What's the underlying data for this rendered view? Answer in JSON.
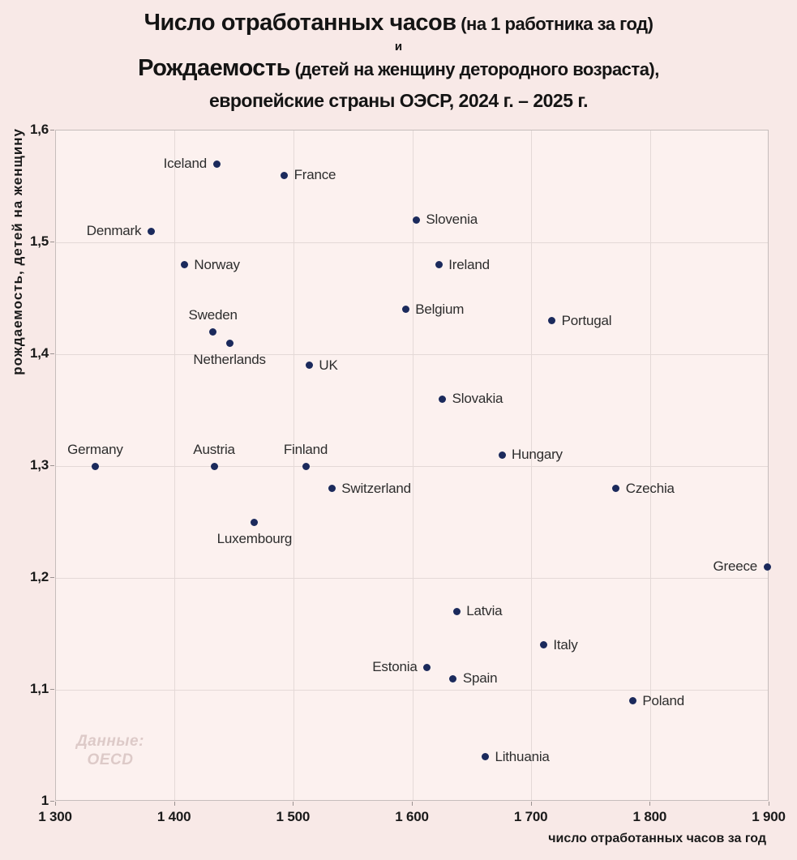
{
  "title": {
    "line1_main": "Число отработанных часов",
    "line1_sub": " (на 1 работника за год)",
    "line2": "и",
    "line3_main": "Рождаемость",
    "line3_sub": " (детей на женщину детородного возраста),",
    "line4": "европейские страны ОЭСР, 2024 г. – 2025 г."
  },
  "watermark": {
    "line1": "Данные:",
    "line2": "OECD"
  },
  "colors": {
    "background": "#f8e9e7",
    "plot_background": "#fcf1ef",
    "grid": "#e4d9d7",
    "point": "#1b2a5c",
    "label_text": "#2d2d2d"
  },
  "chart_data": {
    "type": "scatter",
    "title": "Число отработанных часов (на 1 работника за год) и Рождаемость (детей на женщину детородного возраста), европейские страны ОЭСР, 2024 г. – 2025 г.",
    "xlabel": "число отработанных часов за год",
    "ylabel": "рождаемость, детей на женщину",
    "xlim": [
      1300,
      1900
    ],
    "ylim": [
      1.0,
      1.6
    ],
    "grid": true,
    "xticks": {
      "values": [
        1300,
        1400,
        1500,
        1600,
        1700,
        1800,
        1900
      ],
      "labels": [
        "1 300",
        "1 400",
        "1 500",
        "1 600",
        "1 700",
        "1 800",
        "1 900"
      ]
    },
    "yticks": {
      "values": [
        1.0,
        1.1,
        1.2,
        1.3,
        1.4,
        1.5,
        1.6
      ],
      "labels": [
        "1",
        "1,1",
        "1,2",
        "1,3",
        "1,4",
        "1,5",
        "1,6"
      ]
    },
    "points": [
      {
        "country": "Iceland",
        "hours": 1435,
        "fertility": 1.57,
        "label_position": "left"
      },
      {
        "country": "France",
        "hours": 1492,
        "fertility": 1.56,
        "label_position": "right"
      },
      {
        "country": "Slovenia",
        "hours": 1603,
        "fertility": 1.52,
        "label_position": "right"
      },
      {
        "country": "Denmark",
        "hours": 1380,
        "fertility": 1.51,
        "label_position": "left"
      },
      {
        "country": "Norway",
        "hours": 1408,
        "fertility": 1.48,
        "label_position": "right"
      },
      {
        "country": "Ireland",
        "hours": 1622,
        "fertility": 1.48,
        "label_position": "right"
      },
      {
        "country": "Belgium",
        "hours": 1594,
        "fertility": 1.44,
        "label_position": "right"
      },
      {
        "country": "Portugal",
        "hours": 1717,
        "fertility": 1.43,
        "label_position": "right"
      },
      {
        "country": "Sweden",
        "hours": 1432,
        "fertility": 1.42,
        "label_position": "above"
      },
      {
        "country": "Netherlands",
        "hours": 1446,
        "fertility": 1.41,
        "label_position": "below"
      },
      {
        "country": "UK",
        "hours": 1513,
        "fertility": 1.39,
        "label_position": "right"
      },
      {
        "country": "Slovakia",
        "hours": 1625,
        "fertility": 1.36,
        "label_position": "right"
      },
      {
        "country": "Hungary",
        "hours": 1675,
        "fertility": 1.31,
        "label_position": "right"
      },
      {
        "country": "Germany",
        "hours": 1333,
        "fertility": 1.3,
        "label_position": "above"
      },
      {
        "country": "Austria",
        "hours": 1433,
        "fertility": 1.3,
        "label_position": "above"
      },
      {
        "country": "Finland",
        "hours": 1510,
        "fertility": 1.3,
        "label_position": "above"
      },
      {
        "country": "Switzerland",
        "hours": 1532,
        "fertility": 1.28,
        "label_position": "right"
      },
      {
        "country": "Czechia",
        "hours": 1771,
        "fertility": 1.28,
        "label_position": "right"
      },
      {
        "country": "Luxembourg",
        "hours": 1467,
        "fertility": 1.25,
        "label_position": "below"
      },
      {
        "country": "Greece",
        "hours": 1898,
        "fertility": 1.21,
        "label_position": "left"
      },
      {
        "country": "Latvia",
        "hours": 1637,
        "fertility": 1.17,
        "label_position": "right"
      },
      {
        "country": "Italy",
        "hours": 1710,
        "fertility": 1.14,
        "label_position": "right"
      },
      {
        "country": "Estonia",
        "hours": 1612,
        "fertility": 1.12,
        "label_position": "left"
      },
      {
        "country": "Spain",
        "hours": 1634,
        "fertility": 1.11,
        "label_position": "right"
      },
      {
        "country": "Poland",
        "hours": 1785,
        "fertility": 1.09,
        "label_position": "right"
      },
      {
        "country": "Lithuania",
        "hours": 1661,
        "fertility": 1.04,
        "label_position": "right"
      }
    ]
  }
}
